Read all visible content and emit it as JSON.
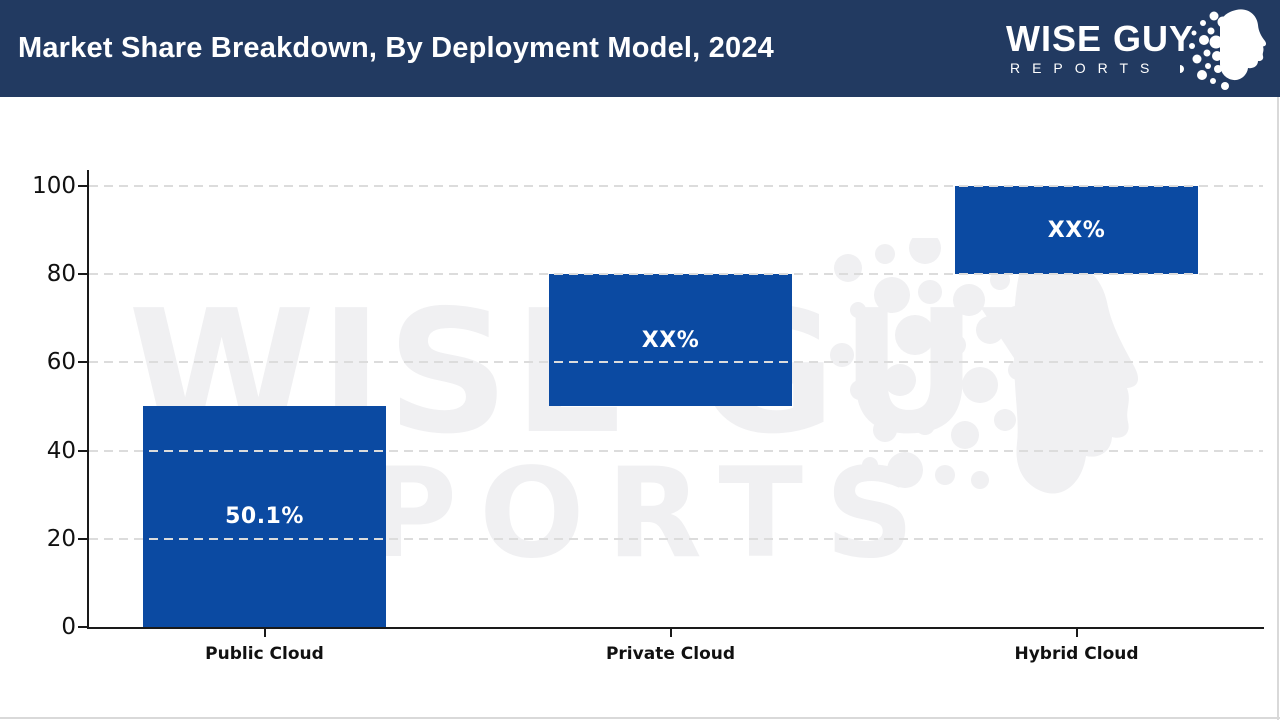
{
  "header": {
    "title": "Market Share Breakdown, By Deployment Model, 2024",
    "logo": {
      "line1": "WISE GUY",
      "line2": "REPORTS",
      "icon": "dotted-head-profile"
    }
  },
  "watermark": {
    "line1": "WISE GUY",
    "line2": "REPORTS",
    "icon": "dotted-head-profile"
  },
  "chart_data": {
    "type": "bar",
    "subtype": "floating-waterfall",
    "title": "Market Share Breakdown, By Deployment Model, 2024",
    "categories": [
      "Public Cloud",
      "Private Cloud",
      "Hybrid Cloud"
    ],
    "segments": [
      {
        "category": "Public Cloud",
        "start": 0,
        "end": 50.1,
        "label": "50.1%"
      },
      {
        "category": "Private Cloud",
        "start": 50.1,
        "end": 80,
        "label": "XX%"
      },
      {
        "category": "Hybrid Cloud",
        "start": 80,
        "end": 100,
        "label": "XX%"
      }
    ],
    "yticks": [
      0,
      20,
      40,
      60,
      80,
      100
    ],
    "ylim": [
      0,
      105
    ],
    "xlabel": "",
    "ylabel": "",
    "grid": "horizontal-dashed",
    "legend": "none"
  },
  "colors": {
    "header_bg": "#223A61",
    "bar": "#0B4AA2",
    "grid": "#dcdcdc",
    "axis": "#1a1a1a",
    "value_label": "#ffffff",
    "watermark": "#f0f0f2",
    "frame": "#d9d9d9"
  }
}
